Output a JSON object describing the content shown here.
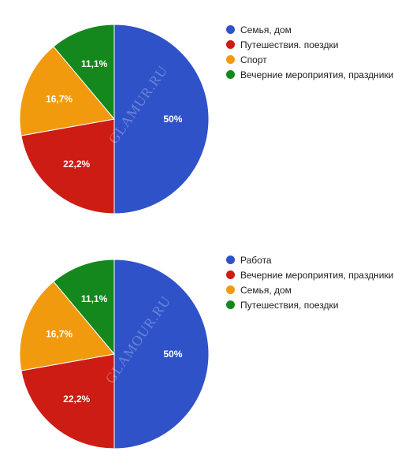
{
  "colors": {
    "blue": "#2f52c8",
    "red": "#cc1c14",
    "orange": "#f29a0e",
    "green": "#14881c"
  },
  "chart_data": [
    {
      "type": "pie",
      "slices": [
        {
          "label": "Семья, дом",
          "value": 50,
          "value_label": "50%",
          "color": "#2f52c8"
        },
        {
          "label": "Путешествия. поездки",
          "value": 22.2,
          "value_label": "22,2%",
          "color": "#cc1c14"
        },
        {
          "label": "Спорт",
          "value": 16.7,
          "value_label": "16,7%",
          "color": "#f29a0e"
        },
        {
          "label": "Вечерние мероприятия, праздники",
          "value": 11.1,
          "value_label": "11,1%",
          "color": "#14881c"
        }
      ],
      "legend_position": "right",
      "watermark": "GLAMUR.RU"
    },
    {
      "type": "pie",
      "slices": [
        {
          "label": "Работа",
          "value": 50,
          "value_label": "50%",
          "color": "#2f52c8"
        },
        {
          "label": "Вечерние мероприятия, праздники",
          "value": 22.2,
          "value_label": "22,2%",
          "color": "#cc1c14"
        },
        {
          "label": "Семья, дом",
          "value": 16.7,
          "value_label": "16,7%",
          "color": "#f29a0e"
        },
        {
          "label": "Путешествия, поездки",
          "value": 11.1,
          "value_label": "11,1%",
          "color": "#14881c"
        }
      ],
      "legend_position": "right",
      "watermark": "GLAMOUR.RU"
    }
  ]
}
